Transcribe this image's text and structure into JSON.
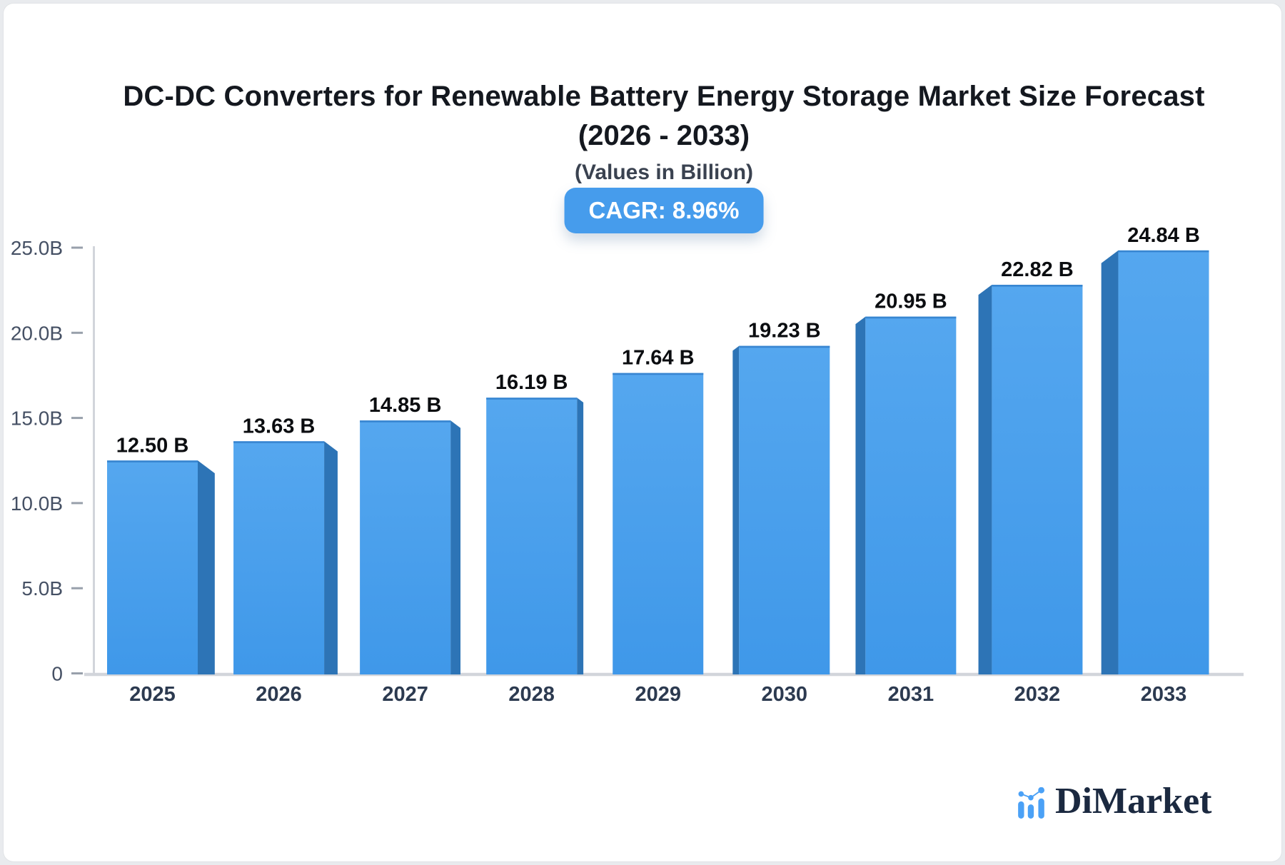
{
  "title": {
    "line1": "DC-DC Converters for Renewable Battery Energy Storage Market Size Forecast",
    "line2": "(2026 - 2033)"
  },
  "subtitle": "(Values in Billion)",
  "cagr_badge": "CAGR: 8.96%",
  "logo": {
    "text": "DiMarket",
    "icon": "mini-bar-chart-icon"
  },
  "colors": {
    "badge_bg": "#469cec",
    "bar_front_top": "#55a7ef",
    "bar_front_bottom": "#3f98e9",
    "bar_side": "#2d74b6",
    "bar_top_edge": "#3886d1",
    "axis_line": "#d2d5db",
    "tick_mark": "#98a0ab",
    "logo_blue": "#4ba1f6"
  },
  "chart_data": {
    "type": "bar",
    "title": "DC-DC Converters for Renewable Battery Energy Storage Market Size Forecast (2026 - 2033)",
    "subtitle": "Values in Billion",
    "cagr": "8.96%",
    "categories": [
      "2025",
      "2026",
      "2027",
      "2028",
      "2029",
      "2030",
      "2031",
      "2032",
      "2033"
    ],
    "values": [
      12.5,
      13.63,
      14.85,
      16.19,
      17.64,
      19.23,
      20.95,
      22.82,
      24.84
    ],
    "value_labels": [
      "12.50 B",
      "13.63 B",
      "14.85 B",
      "16.19 B",
      "17.64 B",
      "19.23 B",
      "20.95 B",
      "22.82 B",
      "24.84 B"
    ],
    "y_ticks": [
      {
        "value": 0,
        "label": "0"
      },
      {
        "value": 5,
        "label": "5.0B"
      },
      {
        "value": 10,
        "label": "10.0B"
      },
      {
        "value": 15,
        "label": "15.0B"
      },
      {
        "value": 20,
        "label": "20.0B"
      },
      {
        "value": 25,
        "label": "25.0B"
      }
    ],
    "ylim": [
      0,
      25
    ],
    "grid": false,
    "legend": false,
    "bar_style": "3d-extruded-center-perspective"
  }
}
